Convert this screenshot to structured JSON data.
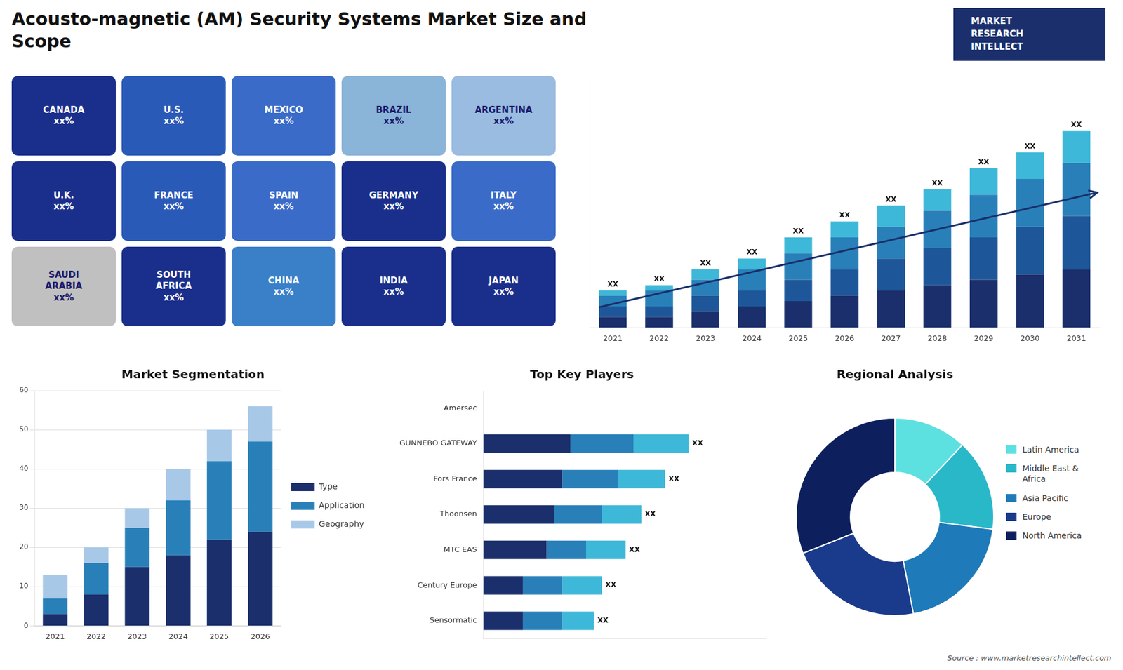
{
  "title": "Acousto-magnetic (AM) Security Systems Market Size and\nScope",
  "annotations": [
    "Source : www.marketresearchintellect.com"
  ],
  "logo": {
    "texts": [
      "MARKET",
      "RESEARCH",
      "INTELLECT"
    ],
    "color": "#1a2f6b"
  },
  "chart_data": [
    {
      "type": "map",
      "annotations": [
        "CANADA\nxx%",
        "U.S.\nxx%",
        "MEXICO\nxx%",
        "BRAZIL\nxx%",
        "ARGENTINA\nxx%",
        "U.K.\nxx%",
        "FRANCE\nxx%",
        "SPAIN\nxx%",
        "GERMANY\nxx%",
        "ITALY\nxx%",
        "SAUDI\nARABIA\nxx%",
        "SOUTH\nAFRICA\nxx%",
        "CHINA\nxx%",
        "INDIA\nxx%",
        "JAPAN\nxx%"
      ],
      "colors": [
        "#1a2f8b",
        "#2a5ab8",
        "#3a6bc8",
        "#8ab4d8",
        "#9abce0",
        "#1a2f8b",
        "#2a5ab8",
        "#3a6bc8",
        "#1a2f8b",
        "#3a6bc8",
        "#c0c0c0",
        "#1a2f8b",
        "#3a80c8",
        "#1a2f8b",
        "#1a2f8b"
      ]
    },
    {
      "type": "bar",
      "stacked": true,
      "categories": [
        "2021",
        "2022",
        "2023",
        "2024",
        "2025",
        "2026",
        "2027",
        "2028",
        "2029",
        "2030",
        "2031"
      ],
      "series": [
        {
          "color": "#1a2f6b",
          "values": [
            2,
            2,
            3,
            4,
            5,
            6,
            7,
            8,
            9,
            10,
            11
          ]
        },
        {
          "color": "#1e5799",
          "values": [
            2,
            2,
            3,
            3,
            4,
            5,
            6,
            7,
            8,
            9,
            10
          ]
        },
        {
          "color": "#2980b9",
          "values": [
            2,
            3,
            3,
            4,
            5,
            6,
            6,
            7,
            8,
            9,
            10
          ]
        },
        {
          "color": "#3eb8d8",
          "values": [
            1,
            1,
            2,
            2,
            3,
            3,
            4,
            4,
            5,
            5,
            6
          ]
        }
      ],
      "ylim": [
        0,
        47.36
      ],
      "tick_labels": "x",
      "grid": false,
      "total_labels": [
        "XX",
        "XX",
        "XX",
        "XX",
        "XX",
        "XX",
        "XX",
        "XX",
        "XX",
        "XX",
        "XX"
      ],
      "trend_line": {
        "x": [
          -0.3,
          10.45
        ],
        "y": [
          3.84,
          25.44
        ],
        "color": "#1a2f6b"
      }
    },
    {
      "type": "bar",
      "stacked": true,
      "title": "Market Segmentation",
      "categories": [
        "2021",
        "2022",
        "2023",
        "2024",
        "2025",
        "2026"
      ],
      "series": [
        {
          "name": "Type",
          "color": "#1a2f6b",
          "values": [
            3,
            8,
            15,
            18,
            22,
            24
          ]
        },
        {
          "name": "Application",
          "color": "#2980b9",
          "values": [
            4,
            8,
            10,
            14,
            20,
            23
          ]
        },
        {
          "name": "Geography",
          "color": "#a8c8e8",
          "values": [
            6,
            4,
            5,
            8,
            8,
            9
          ]
        }
      ],
      "ylim": [
        0,
        60
      ],
      "yticks": [
        0,
        10,
        20,
        30,
        40,
        50,
        60
      ],
      "grid": true,
      "legend": "right"
    },
    {
      "type": "bar",
      "orientation": "horizontal",
      "stacked": true,
      "title": "Top Key Players",
      "categories": [
        "Sensormatic",
        "Century Europe",
        "MTC EAS",
        "Thoonsen",
        "Fors France",
        "GUNNEBO GATEWAY",
        "Amersec"
      ],
      "series": [
        {
          "color": "#1a2f6b",
          "values": [
            5,
            5,
            8,
            9,
            10,
            11,
            0
          ]
        },
        {
          "color": "#2980b9",
          "values": [
            5,
            5,
            5,
            6,
            7,
            8,
            0
          ]
        },
        {
          "color": "#3eb8d8",
          "values": [
            4,
            5,
            5,
            5,
            6,
            7,
            0
          ]
        }
      ],
      "xlim": [
        0,
        35.8
      ],
      "tick_labels": "y",
      "grid": false,
      "total_labels": [
        "XX",
        "XX",
        "XX",
        "XX",
        "XX",
        "XX",
        null
      ]
    },
    {
      "type": "doughnut",
      "title": "Regional Analysis",
      "categories": [
        "Latin America",
        "Middle East &\nAfrica",
        "Asia Pacific",
        "Europe",
        "North America"
      ],
      "values": [
        12,
        15,
        20,
        22,
        31
      ],
      "colors": [
        "#5de0e0",
        "#29b8c8",
        "#1e7ab8",
        "#1a3a8b",
        "#0d1f5c"
      ],
      "legend": "right"
    }
  ]
}
